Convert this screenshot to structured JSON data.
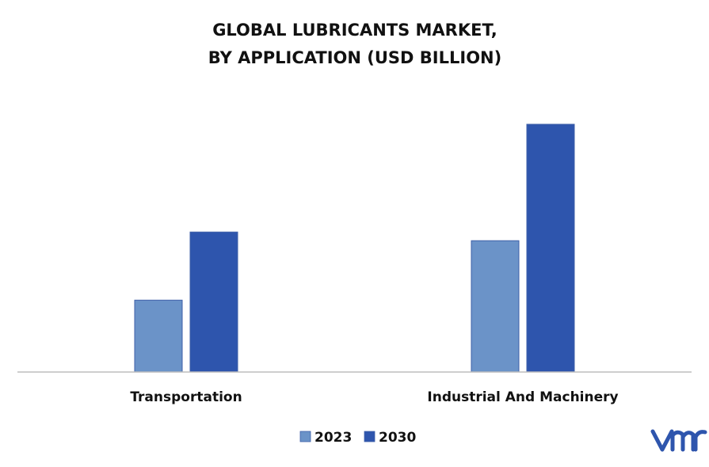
{
  "chart_data": {
    "type": "bar",
    "title_lines": [
      "GLOBAL LUBRICANTS MARKET,",
      "BY APPLICATION (USD BILLION)"
    ],
    "categories": [
      "Transportation",
      "Industrial And Machinery"
    ],
    "series": [
      {
        "name": "2023",
        "color": "#6b93c8",
        "values": [
          29,
          53
        ]
      },
      {
        "name": "2030",
        "color": "#2e55ad",
        "values": [
          56.5,
          100
        ]
      }
    ],
    "xlabel": "",
    "ylabel": "",
    "ylim": [
      0,
      100
    ],
    "grid": false,
    "legend_position": "bottom-center",
    "logo": {
      "name": "vmr-logo",
      "text": "vmr",
      "color": "#2e55ad"
    }
  }
}
